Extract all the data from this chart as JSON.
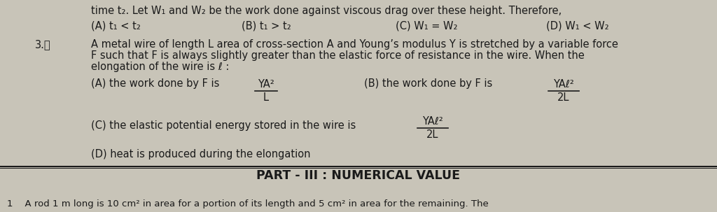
{
  "background_color": "#c8c4b8",
  "text_color": "#1a1a1a",
  "line1": "time t₂. Let W₁ and W₂ be the work done against viscous drag over these height. Therefore,",
  "line2_items": [
    "(A) t₁ < t₂",
    "(B) t₁ > t₂",
    "(C) W₁ = W₂",
    "(D) W₁ < W₂"
  ],
  "q3_prefix": "3.⨽",
  "q3_lines": [
    "A metal wire of length L area of cross-section A and Young’s modulus Y is stretched by a variable force",
    "F such that F is always slightly greater than the elastic force of resistance in the wire. When the",
    "elongation of the wire is ℓ :"
  ],
  "optA_text": "(A) the work done by F is",
  "optA_num": "YA²",
  "optA_den": "L",
  "optB_text": "(B) the work done by F is",
  "optB_num": "YAℓ²",
  "optB_den": "2L",
  "optC_text": "(C) the elastic potential energy stored in the wire is",
  "optC_num": "YAℓ²",
  "optC_den": "2L",
  "optD_text": "(D) heat is produced during the elongation",
  "part_text": "PART - III : NUMERICAL VALUE",
  "last_line": "1    A rod 1 m long is 10 cm² in area for a portion of its length and 5 cm² in area for the remaining. The",
  "font_size_main": 10.5,
  "font_size_part": 12.5,
  "font_size_last": 9.5
}
